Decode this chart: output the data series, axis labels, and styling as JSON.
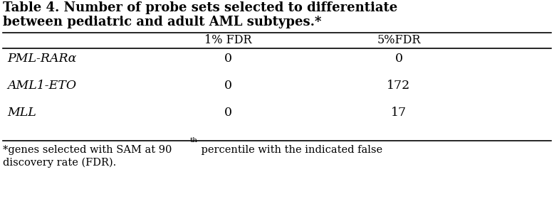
{
  "title_line1": "Table 4. Number of probe sets selected to differentiate",
  "title_line2": "between pediatric and adult AML subtypes.*",
  "col_headers": [
    "1% FDR",
    "5%FDR"
  ],
  "row_labels": [
    "PML-RARα",
    "AML1-ETO",
    "MLL"
  ],
  "data": [
    [
      0,
      0
    ],
    [
      0,
      172
    ],
    [
      0,
      17
    ]
  ],
  "footnote_main": "*genes selected with SAM at 90",
  "footnote_super": "th",
  "footnote_rest": " percentile with the indicated false",
  "footnote_line2": "discovery rate (FDR).",
  "bg_color": "#ffffff",
  "text_color": "#000000",
  "font_size_title": 13.0,
  "font_size_header": 11.5,
  "font_size_data": 12.5,
  "font_size_footnote": 10.5
}
